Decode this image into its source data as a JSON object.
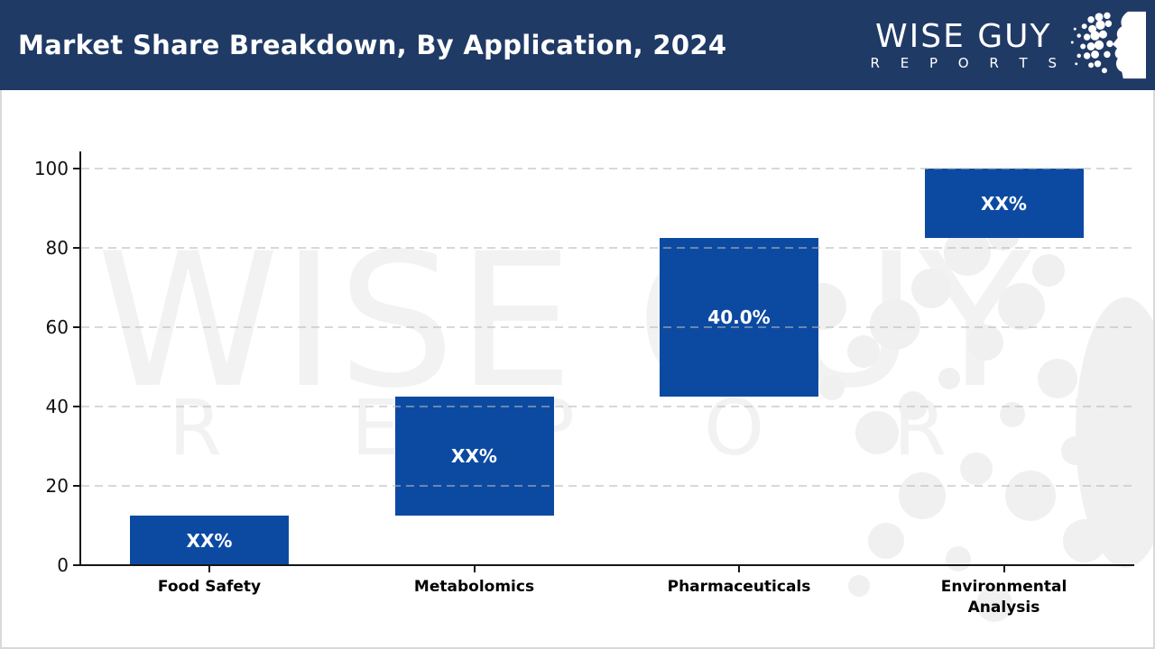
{
  "header": {
    "title": "Market Share Breakdown, By Application, 2024",
    "brand": {
      "line1": "WISE GUY",
      "line2": "R E P O R T S"
    }
  },
  "watermark": {
    "line1": "WISE GUY",
    "line2": "R E P O R T S"
  },
  "chart_data": {
    "type": "bar",
    "subtype": "waterfall",
    "title": "Market Share Breakdown, By Application, 2024",
    "categories": [
      "Food Safety",
      "Metabolomics",
      "Pharmaceuticals",
      "Environmental Analysis"
    ],
    "bars": [
      {
        "category": "Food Safety",
        "start": 0,
        "end": 12.5,
        "value_label": "XX%"
      },
      {
        "category": "Metabolomics",
        "start": 12.5,
        "end": 42.5,
        "value_label": "XX%"
      },
      {
        "category": "Pharmaceuticals",
        "start": 42.5,
        "end": 82.5,
        "value_label": "40.0%"
      },
      {
        "category": "Environmental Analysis",
        "start": 82.5,
        "end": 100,
        "value_label": "XX%"
      }
    ],
    "xlabel": "",
    "ylabel": "",
    "yticks": [
      0,
      20,
      40,
      60,
      80,
      100
    ],
    "ylim": [
      0,
      104
    ],
    "grid": "horizontal-dashed",
    "legend": "none",
    "bar_color": "#0c4aa2",
    "bar_label_color": "#ffffff",
    "header_color": "#203a66",
    "gridline_color": "#e3e3e3",
    "axis_color": "#161616"
  }
}
